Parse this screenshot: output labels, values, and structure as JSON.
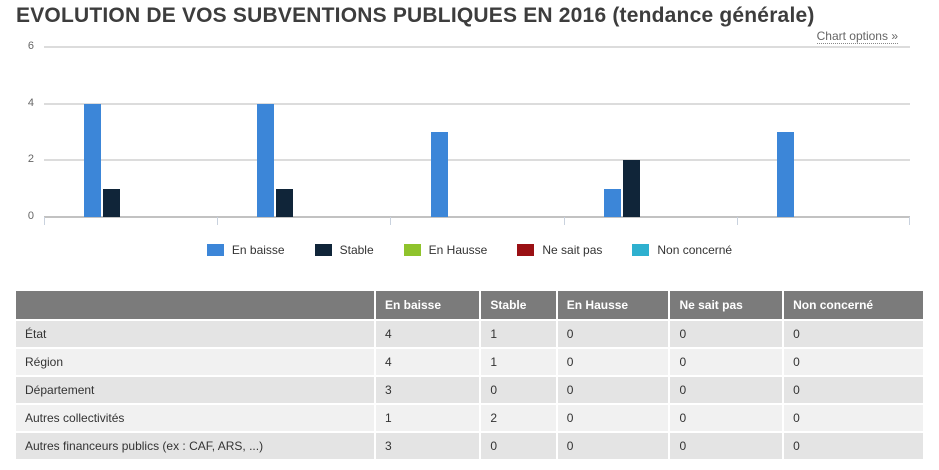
{
  "header": {
    "title": "EVOLUTION DE VOS SUBVENTIONS PUBLIQUES EN 2016 (tendance générale)",
    "chart_options_label": "Chart options »"
  },
  "chart_data": {
    "type": "bar",
    "title": "EVOLUTION DE VOS SUBVENTIONS PUBLIQUES EN 2016 (tendance générale)",
    "xlabel": "",
    "ylabel": "",
    "ylim": [
      0,
      6
    ],
    "yticks": [
      0,
      2,
      4,
      6
    ],
    "grid": true,
    "legend_position": "bottom",
    "categories": [
      "État",
      "Région",
      "Département",
      "Autres collectivités",
      "Autres financeurs publics (ex : CAF, ARS, ...)"
    ],
    "series": [
      {
        "name": "En baisse",
        "color": "#3c86d8",
        "values": [
          4,
          4,
          3,
          1,
          3
        ]
      },
      {
        "name": "Stable",
        "color": "#102539",
        "values": [
          1,
          1,
          0,
          2,
          0
        ]
      },
      {
        "name": "En Hausse",
        "color": "#8fc32c",
        "values": [
          0,
          0,
          0,
          0,
          0
        ]
      },
      {
        "name": "Ne sait pas",
        "color": "#9a1014",
        "values": [
          0,
          0,
          0,
          0,
          0
        ]
      },
      {
        "name": "Non concerné",
        "color": "#2eb0cf",
        "values": [
          0,
          0,
          0,
          0,
          0
        ]
      }
    ]
  },
  "table": {
    "columns": [
      "",
      "En baisse",
      "Stable",
      "En Hausse",
      "Ne sait pas",
      "Non concerné"
    ],
    "rows": [
      {
        "label": "État",
        "values": [
          "4",
          "1",
          "0",
          "0",
          "0"
        ]
      },
      {
        "label": "Région",
        "values": [
          "4",
          "1",
          "0",
          "0",
          "0"
        ]
      },
      {
        "label": "Département",
        "values": [
          "3",
          "0",
          "0",
          "0",
          "0"
        ]
      },
      {
        "label": "Autres collectivités",
        "values": [
          "1",
          "2",
          "0",
          "0",
          "0"
        ]
      },
      {
        "label": "Autres financeurs publics (ex : CAF, ARS, ...)",
        "values": [
          "3",
          "0",
          "0",
          "0",
          "0"
        ]
      }
    ]
  }
}
